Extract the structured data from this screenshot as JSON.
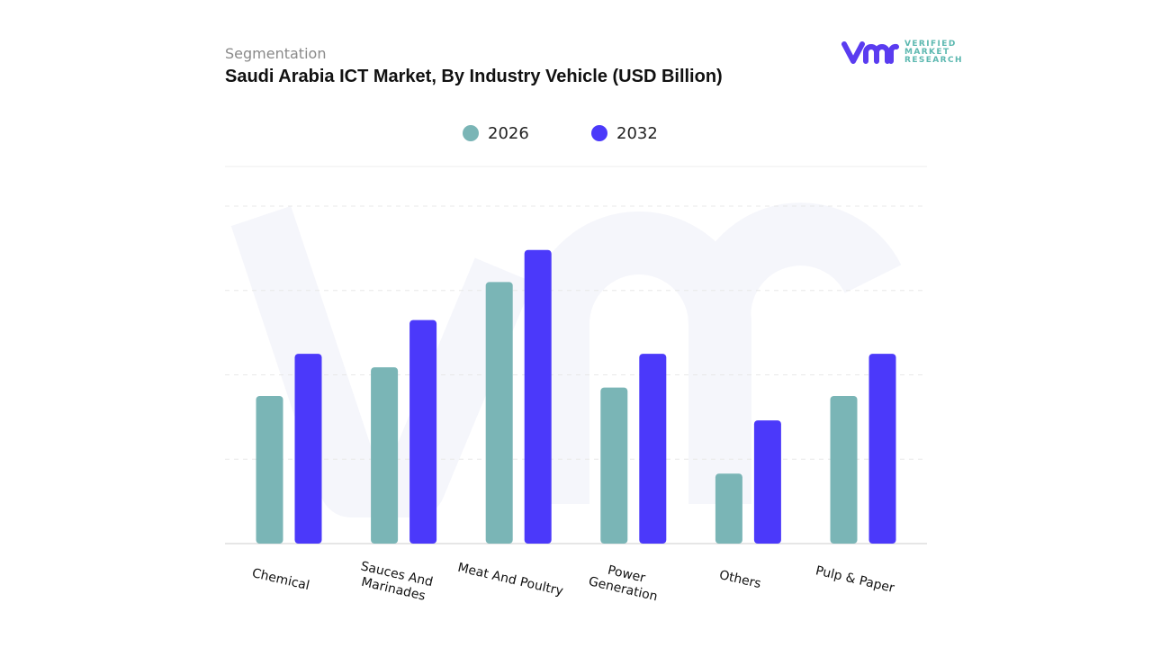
{
  "header": {
    "segment_label": "Segmentation",
    "title": "Saudi Arabia ICT Market, By Industry Vehicle (USD Billion)"
  },
  "logo": {
    "lines": [
      "VERIFIED",
      "MARKET",
      "RESEARCH"
    ],
    "mark": "vmr"
  },
  "colors": {
    "2026": "#7ab5b6",
    "2032": "#4b39fa",
    "logo_mark": "#5a3cf0",
    "logo_text": "#5cb8b0"
  },
  "chart_data": {
    "type": "bar",
    "title": "Saudi Arabia ICT Market, By Industry Vehicle (USD Billion)",
    "xlabel": "",
    "ylabel": "",
    "categories": [
      "Chemical",
      "Sauces And Marinades",
      "Meat And Poultry",
      "Power Generation",
      "Others",
      "Pulp & Paper"
    ],
    "category_lines": [
      [
        "Chemical"
      ],
      [
        "Sauces And",
        "Marinades"
      ],
      [
        "Meat And Poultry"
      ],
      [
        "Power",
        "Generation"
      ],
      [
        "Others"
      ],
      [
        "Pulp & Paper"
      ]
    ],
    "series": [
      {
        "name": "2026",
        "values": [
          1.75,
          2.09,
          3.1,
          1.85,
          0.83,
          1.75
        ]
      },
      {
        "name": "2032",
        "values": [
          2.25,
          2.65,
          3.48,
          2.25,
          1.46,
          2.25
        ]
      }
    ],
    "ylim": [
      0,
      4
    ],
    "grid": true,
    "legend": "top-center",
    "note": "relative values; no y-axis tick labels shown"
  }
}
